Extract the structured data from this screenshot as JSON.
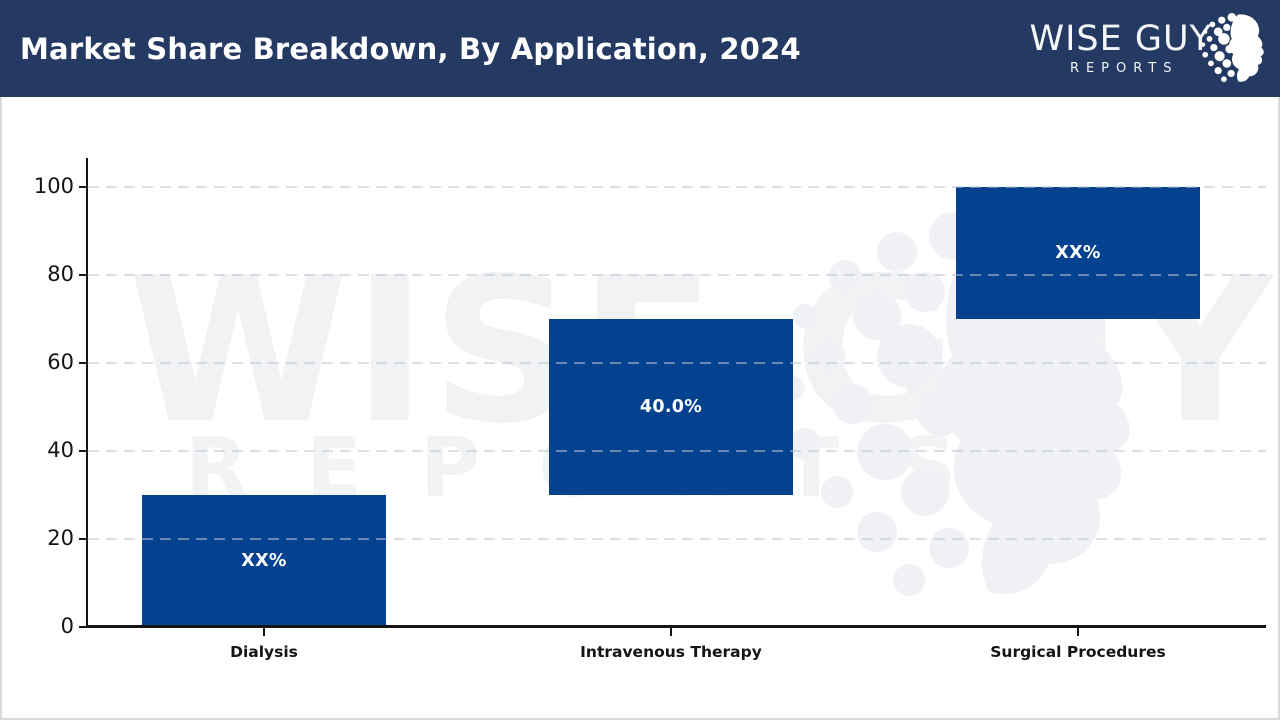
{
  "header": {
    "title": "Market Share Breakdown, By Application, 2024",
    "logo": {
      "line1": "WISE GUY",
      "line2": "REPORTS"
    }
  },
  "watermark": {
    "line1": "WISE GUY",
    "line2": "REPORTS"
  },
  "colors": {
    "header_bg": "#243a63",
    "bar": "#04418f",
    "grid": "#d9d9d9",
    "axis": "#141414",
    "watermark": "#f1f2f4",
    "title_text": "#ffffff",
    "bar_label_text": "#ffffff"
  },
  "chart_data": {
    "type": "bar",
    "subtype": "floating-range-bars (waterfall style)",
    "title": "Market Share Breakdown, By Application, 2024",
    "categories": [
      "Dialysis",
      "Intravenous Therapy",
      "Surgical Procedures"
    ],
    "values": [
      30,
      40,
      30
    ],
    "ranges": [
      [
        0,
        30
      ],
      [
        30,
        70
      ],
      [
        70,
        100
      ]
    ],
    "bar_labels": [
      "XX%",
      "40.0%",
      "XX%"
    ],
    "xlabel": "",
    "ylabel": "",
    "ylim": [
      0,
      100
    ],
    "yticks": [
      0,
      20,
      40,
      60,
      80,
      100
    ],
    "grid": "horizontal-dashed",
    "legend": "none"
  }
}
